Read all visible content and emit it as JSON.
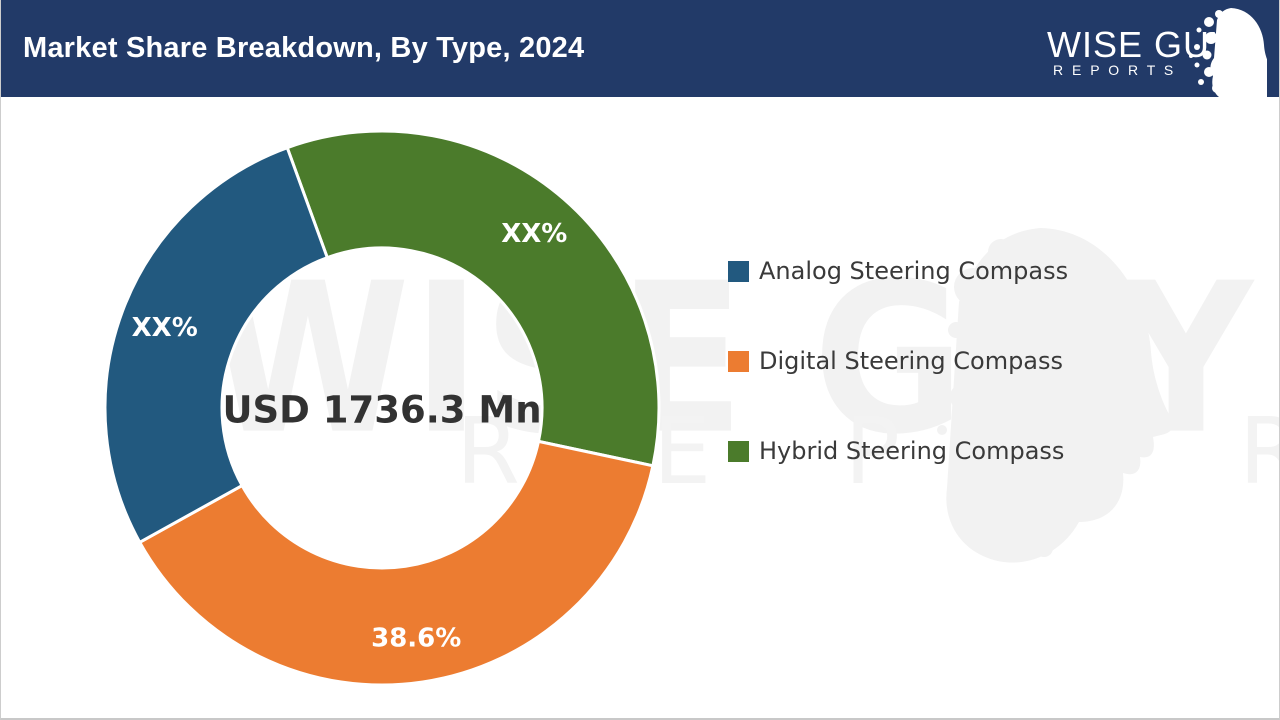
{
  "header": {
    "title": "Market Share Breakdown, By Type, 2024",
    "logo_line1": "WISE GUY",
    "logo_line2": "R E P O R T S"
  },
  "watermark": {
    "line1": "WISE GUY",
    "line2": "R E P O R T S"
  },
  "chart_data": {
    "type": "pie",
    "subtype": "donut",
    "title": "Market Share Breakdown, By Type, 2024",
    "center_label": "USD 1736.3 Mn",
    "total_value": "USD 1736.3 Mn",
    "start_angle_deg": 110,
    "direction": "clockwise",
    "inner_radius_ratio": 0.58,
    "legend_position": "right",
    "slices": [
      {
        "name": "Hybrid Steering Compass",
        "display_label": "XX%",
        "share_pct_est": 33.9,
        "color": "#4b7b2b"
      },
      {
        "name": "Digital Steering Compass",
        "display_label": "38.6%",
        "share_pct_est": 38.6,
        "color": "#ec7c31"
      },
      {
        "name": "Analog Steering Compass",
        "display_label": "XX%",
        "share_pct_est": 27.5,
        "color": "#22597f"
      }
    ],
    "legend": [
      {
        "label": "Analog Steering Compass",
        "color": "#22597f"
      },
      {
        "label": "Digital Steering Compass",
        "color": "#ec7c31"
      },
      {
        "label": "Hybrid Steering Compass",
        "color": "#4b7b2b"
      }
    ]
  },
  "colors": {
    "header_bg": "#223a68",
    "center_text": "#323232",
    "legend_text": "#3a3a3a",
    "watermark": "#f2f2f2",
    "page_border": "#c8c8c8"
  }
}
